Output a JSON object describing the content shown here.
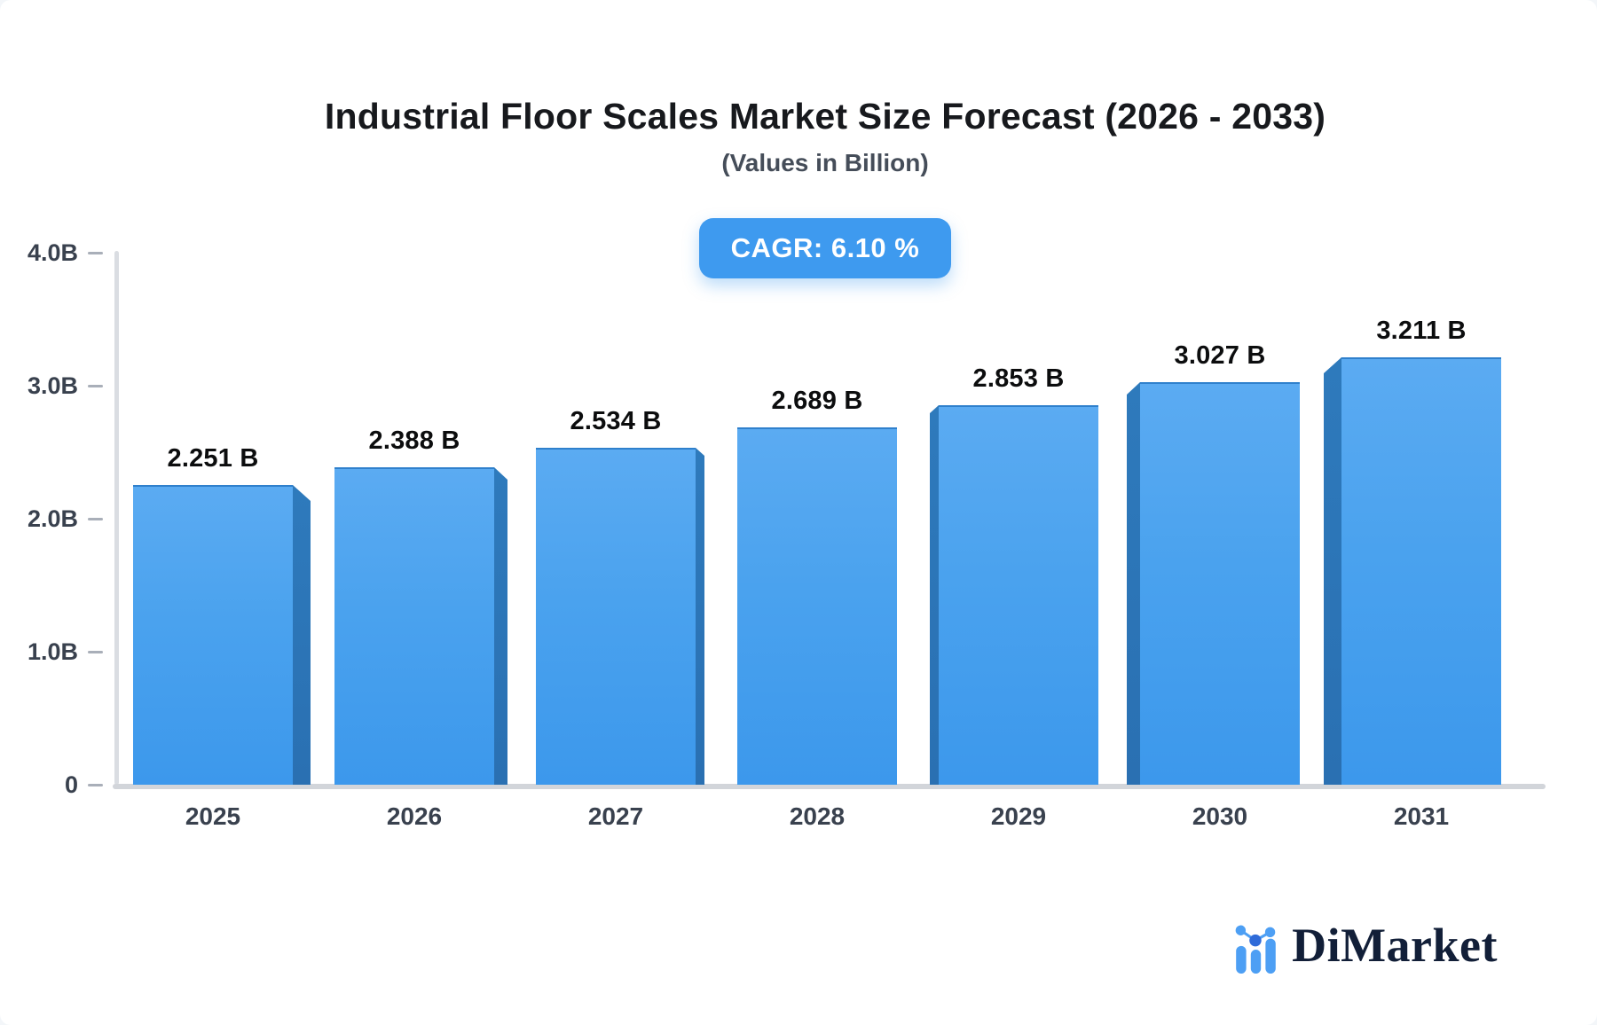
{
  "header": {
    "title": "Industrial Floor Scales Market Size Forecast (2026 - 2033)",
    "subtitle": "(Values in Billion)",
    "cagr_badge": "CAGR: 6.10 %"
  },
  "chart_data": {
    "type": "bar",
    "title": "Industrial Floor Scales Market Size Forecast (2026 - 2033)",
    "subtitle": "(Values in Billion)",
    "cagr_label": "CAGR: 6.10 %",
    "categories": [
      "2025",
      "2026",
      "2027",
      "2028",
      "2029",
      "2030",
      "2031"
    ],
    "values": [
      2.251,
      2.388,
      2.534,
      2.689,
      2.853,
      3.027,
      3.211
    ],
    "value_labels": [
      "2.251 B",
      "2.388 B",
      "2.534 B",
      "2.689 B",
      "2.853 B",
      "3.027 B",
      "3.211 B"
    ],
    "unit": "Billion",
    "y_axis": {
      "range": [
        0,
        4
      ],
      "ticks": [
        {
          "label": "4.0B",
          "value": 4
        },
        {
          "label": "3.0B",
          "value": 3
        },
        {
          "label": "2.0B",
          "value": 2
        },
        {
          "label": "1.0B",
          "value": 1
        },
        {
          "label": "0",
          "value": 0
        }
      ]
    },
    "legend": "none",
    "grid": "off",
    "style": "3d-extruded-bars",
    "colors": {
      "bar_face_top": "#5babf2",
      "bar_face_bottom": "#3c98ec",
      "bar_side": "#2b73b6",
      "bar_top_edge": "#2f80cc",
      "axis_line": "#d2d5da",
      "badge_background": "#3e9aef"
    }
  },
  "branding": {
    "name": "DiMarket",
    "icon": "bar-line-chart-icon",
    "icon_color": "#4d9ff4",
    "icon_accent_color": "#2f6bd9",
    "text_color": "#121f38"
  }
}
